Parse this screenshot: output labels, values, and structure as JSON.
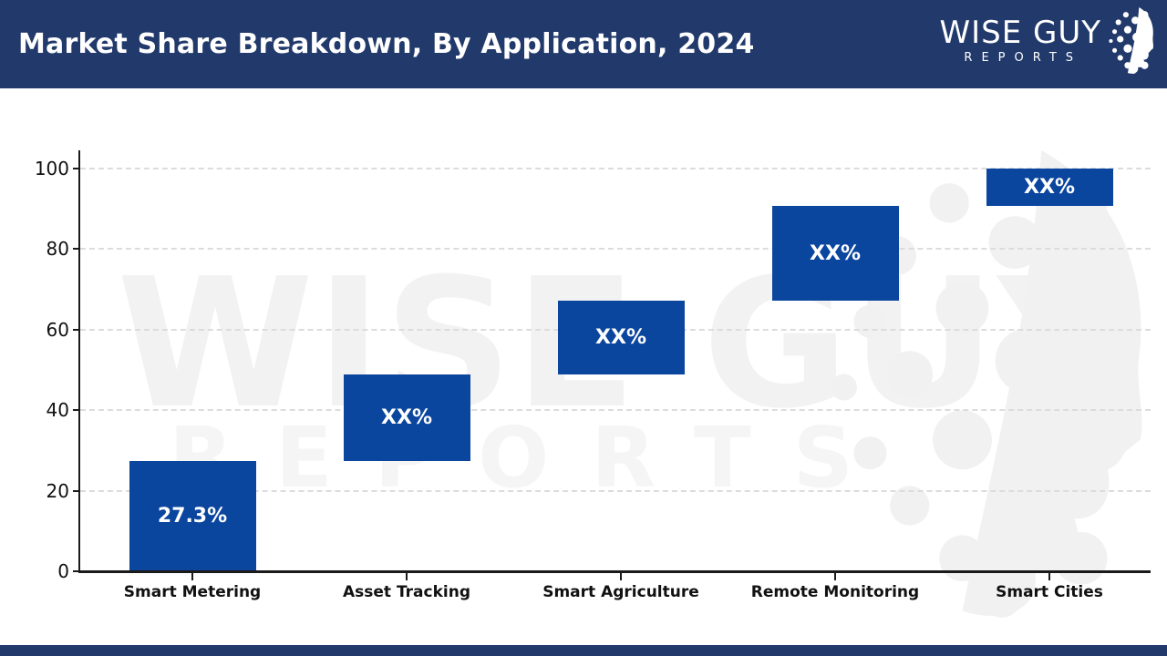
{
  "header": {
    "title": "Market Share Breakdown, By Application, 2024",
    "logo": {
      "line1": "WISE GUY",
      "line2": "REPORTS"
    }
  },
  "watermark": {
    "line1": "WISE GUY",
    "line2": "REPORTS"
  },
  "footer": {},
  "colors": {
    "header_bg": "#21396b",
    "bar": "#0a459e",
    "bar_label": "#ffffff",
    "grid": "#dcdcdc",
    "axis": "#1a1a1a",
    "watermark": "#f2f2f2"
  },
  "chart_data": {
    "type": "bar",
    "subtype": "waterfall",
    "title": "Market Share Breakdown, By Application, 2024",
    "categories": [
      "Smart Metering",
      "Asset Tracking",
      "Smart Agriculture",
      "Remote Monitoring",
      "Smart Cities"
    ],
    "series": [
      {
        "name": "Market Share %",
        "segments": [
          {
            "category": "Smart Metering",
            "start": 0,
            "end": 27.3,
            "label": "27.3%"
          },
          {
            "category": "Asset Tracking",
            "start": 27.3,
            "end": 48.8,
            "label": "XX%"
          },
          {
            "category": "Smart Agriculture",
            "start": 48.8,
            "end": 67.1,
            "label": "XX%"
          },
          {
            "category": "Remote Monitoring",
            "start": 67.1,
            "end": 90.8,
            "label": "XX%"
          },
          {
            "category": "Smart Cities",
            "start": 90.8,
            "end": 100,
            "label": "XX%"
          }
        ]
      }
    ],
    "xlabel": "",
    "ylabel": "",
    "ylim": [
      0,
      105
    ],
    "yticks": [
      0,
      20,
      40,
      60,
      80,
      100
    ],
    "grid": "horizontal-dashed",
    "legend": "none"
  }
}
